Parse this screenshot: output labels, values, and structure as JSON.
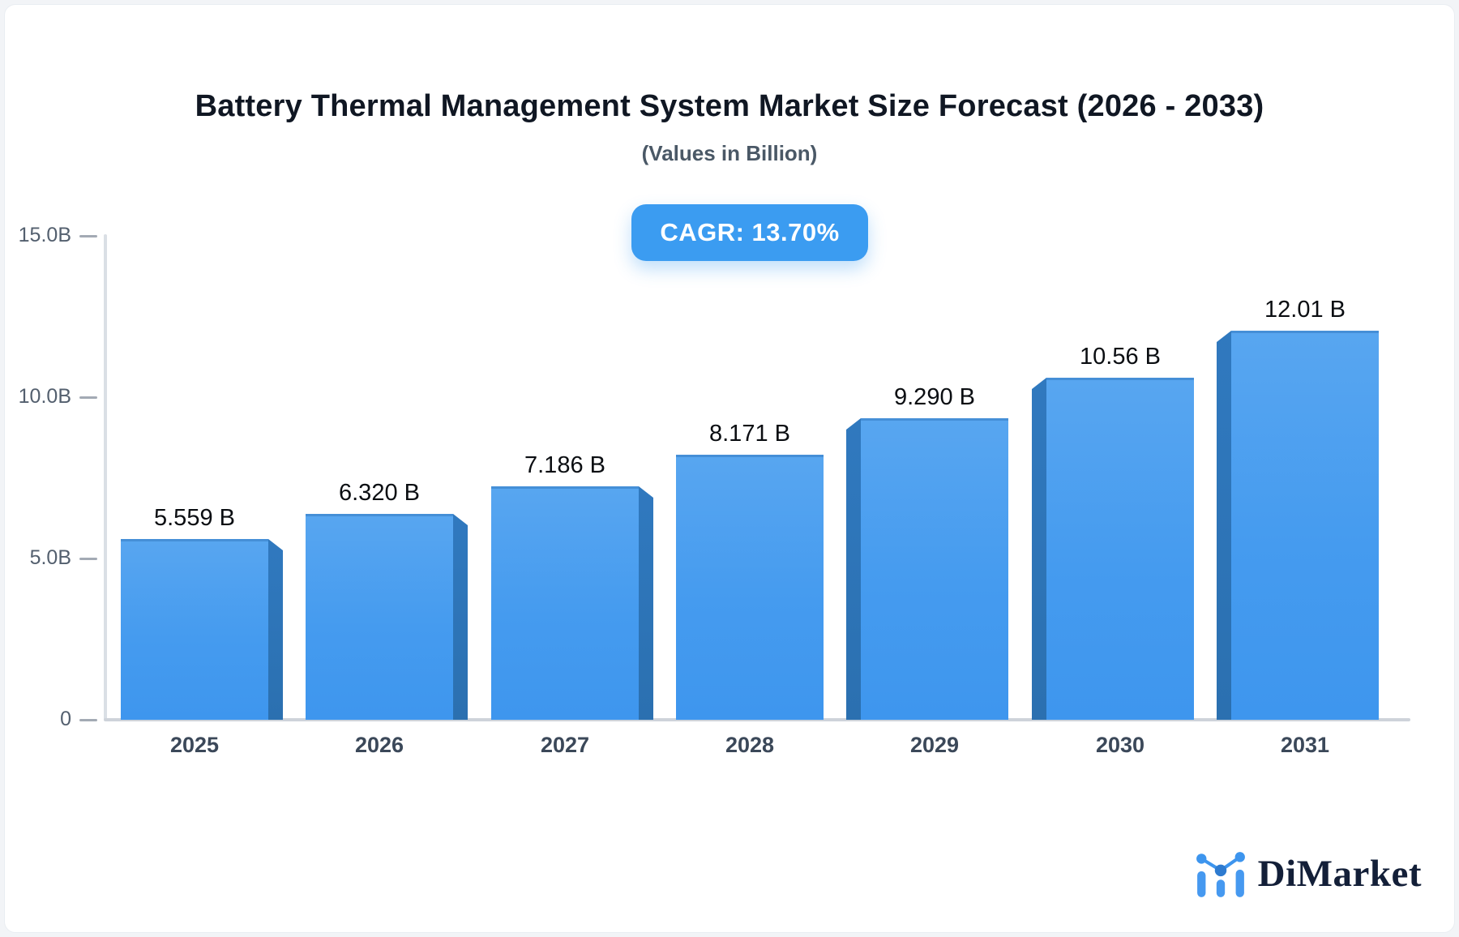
{
  "title": "Battery Thermal Management System Market Size Forecast (2026 - 2033)",
  "subtitle": "(Values in Billion)",
  "badge": {
    "label": "CAGR: 13.70%",
    "color": "#3b9cf1",
    "text_color": "#ffffff"
  },
  "chart_data": {
    "type": "bar",
    "title": "Battery Thermal Management System Market Size Forecast (2026 - 2033)",
    "subtitle": "(Values in Billion)",
    "categories": [
      "2025",
      "2026",
      "2027",
      "2028",
      "2029",
      "2030",
      "2031"
    ],
    "values": [
      5.559,
      6.32,
      7.186,
      8.171,
      9.29,
      10.56,
      12.01
    ],
    "value_labels": [
      "5.559 B",
      "6.320 B",
      "7.186 B",
      "8.171 B",
      "9.290 B",
      "10.56 B",
      "12.01 B"
    ],
    "xlabel": "",
    "ylabel": "",
    "ylim": [
      0,
      15
    ],
    "y_ticks": [
      "15.0B",
      "10.0B",
      "5.0B",
      "0"
    ],
    "y_tick_values": [
      15,
      10,
      5,
      0
    ],
    "grid": false,
    "legend": "none",
    "style": "3d-bevel-bars",
    "bar_color_top": "#58a6f0",
    "bar_color_bottom": "#3e96ee",
    "bar_side_color": "#2d74b8",
    "axis_color": "#ced3da",
    "tick_label_color": "#535f6e"
  },
  "logo": {
    "text": "DiMarket",
    "icon": "bar-chart-logo-icon",
    "icon_color": "#3d95ee",
    "text_color": "#131f38"
  }
}
